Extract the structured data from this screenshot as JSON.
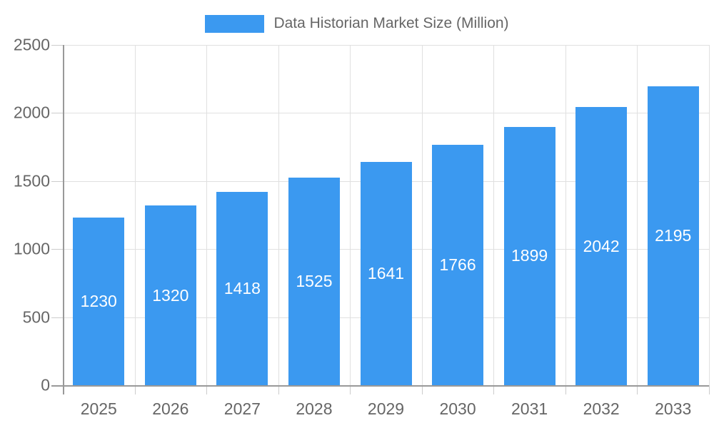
{
  "chart_data": {
    "type": "bar",
    "title": "Data Historian Market Size (Million)",
    "legend_position": "top",
    "categories": [
      "2025",
      "2026",
      "2027",
      "2028",
      "2029",
      "2030",
      "2031",
      "2032",
      "2033"
    ],
    "values": [
      1230,
      1320,
      1418,
      1525,
      1641,
      1766,
      1899,
      2042,
      2195
    ],
    "xlabel": "",
    "ylabel": "",
    "ylim": [
      0,
      2500
    ],
    "y_ticks": [
      0,
      500,
      1000,
      1500,
      2000,
      2500
    ],
    "grid": true,
    "value_labels": "inside-center",
    "colors": {
      "bar": "#3b99f0",
      "axis_text": "#666666",
      "grid": "#e0e0e0",
      "axis_line": "#999999",
      "tick": "#cccccc",
      "bar_label": "#ffffff"
    }
  }
}
